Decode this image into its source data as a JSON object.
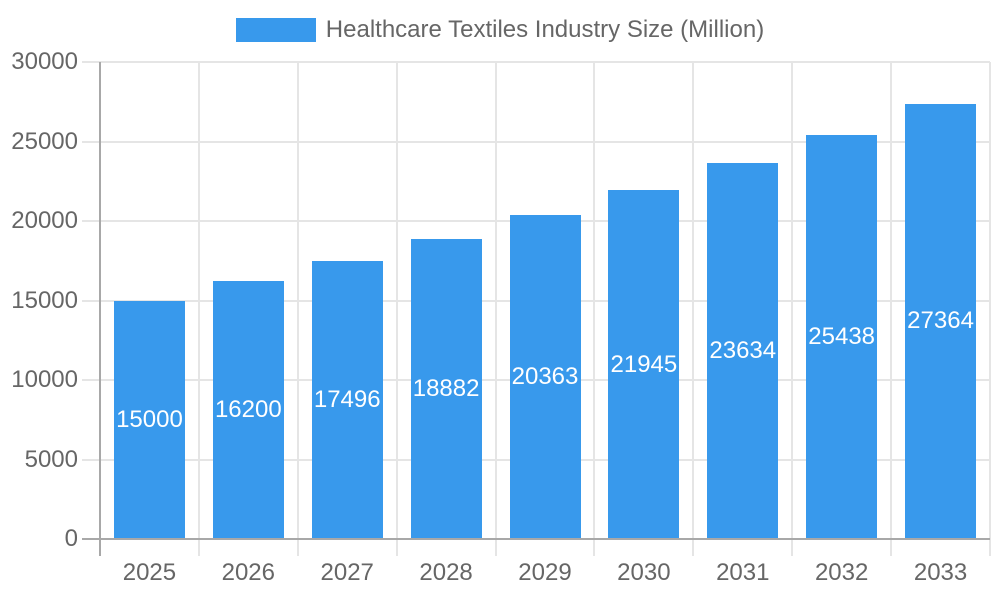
{
  "chart_data": {
    "type": "bar",
    "title": "Healthcare Textiles Industry Size (Million)",
    "legend": {
      "position": "top",
      "label": "Healthcare Textiles Industry Size (Million)"
    },
    "categories": [
      "2025",
      "2026",
      "2027",
      "2028",
      "2029",
      "2030",
      "2031",
      "2032",
      "2033"
    ],
    "values": [
      15000,
      16200,
      17496,
      18882,
      20363,
      21945,
      23634,
      25438,
      27364
    ],
    "bar_value_labels": [
      "15000",
      "16200",
      "17496",
      "18882",
      "20363",
      "21945",
      "23634",
      "25438",
      "27364"
    ],
    "xlabel": "",
    "ylabel": "",
    "ylim": [
      0,
      30000
    ],
    "yticks": [
      0,
      5000,
      10000,
      15000,
      20000,
      25000,
      30000
    ],
    "ytick_labels": [
      "0",
      "5000",
      "10000",
      "15000",
      "20000",
      "25000",
      "30000"
    ],
    "grid": true,
    "colors": {
      "bar": "#3899EC",
      "bar_value_label": "#FFFFFF",
      "axis_text": "#666666",
      "gridline": "#E5E5E5",
      "zero_line": "#A8A8A8",
      "background": "#FFFFFF"
    }
  }
}
